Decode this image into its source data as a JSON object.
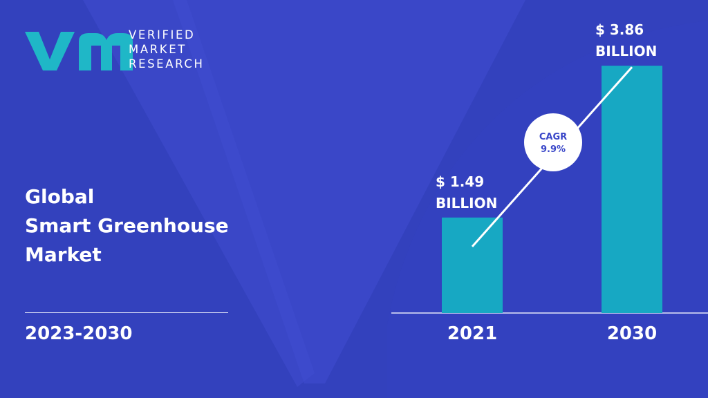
{
  "brand": {
    "line1": "VERIFIED",
    "line2": "MARKET",
    "line3": "RESEARCH"
  },
  "title": {
    "line1": "Global",
    "line2": "Smart Greenhouse",
    "line3": "Market"
  },
  "period": "2023-2030",
  "colors": {
    "background": "#3a47c8",
    "bar": "#17a8c3",
    "text": "#ffffff",
    "cagr_text": "#3a47c8"
  },
  "chart_data": {
    "type": "bar",
    "categories": [
      "2021",
      "2030"
    ],
    "values": [
      1.49,
      3.86
    ],
    "value_labels": [
      [
        "$ 1.49",
        "BILLION"
      ],
      [
        "$ 3.86",
        "BILLION"
      ]
    ],
    "ylim": [
      0,
      4.4
    ],
    "grid": false,
    "annotation": {
      "line1": "CAGR",
      "line2": "9.9%"
    }
  }
}
